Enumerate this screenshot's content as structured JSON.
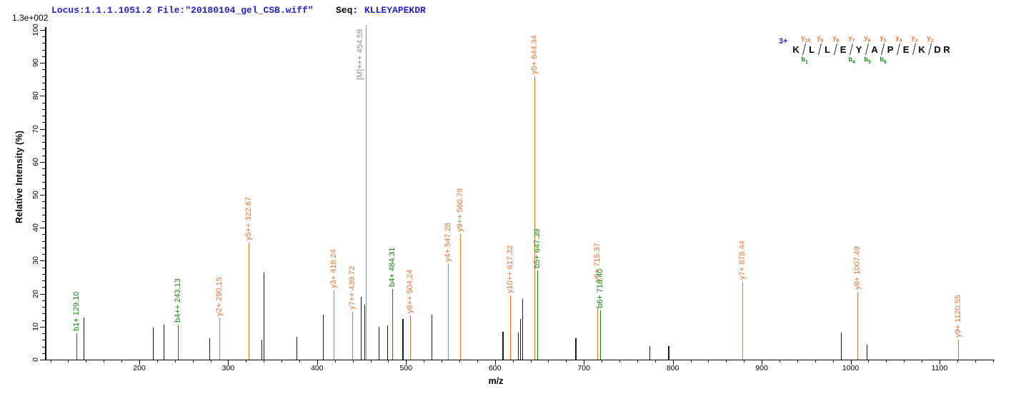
{
  "header": {
    "locus_file": "Locus:1.1.1.1051.2 File:\"20180104_gel_CSB.wiff\"",
    "seq_label": "Seq:",
    "sequence": "KLLEYAPEKDR"
  },
  "colors": {
    "y_ion": "#e2773b",
    "b_ion": "#118611",
    "header_blue": "#2222c2",
    "precursor_gray": "#8a8a8a",
    "peak_black": "#1a1a1a",
    "axis_black": "#000000"
  },
  "chart_data": {
    "type": "bar",
    "subtype": "ms2_stick_spectrum",
    "title": "Locus:1.1.1.1051.2 File:\"20180104_gel_CSB.wiff\"",
    "xlabel": "m/z",
    "ylabel": "Relative  Intensity (%)",
    "y_top_label": "1.3e+002",
    "xlim": [
      94,
      1160
    ],
    "ylim": [
      0,
      100
    ],
    "x_major_ticks": [
      200,
      300,
      400,
      500,
      600,
      700,
      800,
      900,
      1000,
      1100
    ],
    "x_minor_step": 20,
    "y_major_ticks": [
      0,
      10,
      20,
      30,
      40,
      50,
      60,
      70,
      80,
      90,
      100
    ],
    "y_minor_step": 2,
    "grid": false,
    "legend": "none",
    "precursor": {
      "label": "[M]+++ 454.59",
      "mz": 454.59,
      "charge": "3+"
    },
    "annotated_peaks": [
      {
        "ion": "b1+",
        "mz": 129.1,
        "mz_label": "129.10",
        "intensity": 8,
        "series": "b"
      },
      {
        "ion": "b4++",
        "mz": 243.13,
        "mz_label": "243.13",
        "intensity": 10.5,
        "series": "b"
      },
      {
        "ion": "y2+",
        "mz": 290.15,
        "mz_label": "290.15",
        "intensity": 12.5,
        "series": "y"
      },
      {
        "ion": "y5++",
        "mz": 322.67,
        "mz_label": "322.67",
        "intensity": 35.5,
        "series": "y"
      },
      {
        "ion": "y3+",
        "mz": 418.24,
        "mz_label": "418.24",
        "intensity": 21,
        "series": "y"
      },
      {
        "ion": "y7++",
        "mz": 439.72,
        "mz_label": "439.72",
        "intensity": 14.5,
        "series": "y"
      },
      {
        "ion": "b4+",
        "mz": 484.31,
        "mz_label": "484.31",
        "intensity": 21.5,
        "series": "b"
      },
      {
        "ion": "y8++",
        "mz": 504.24,
        "mz_label": "504.24",
        "intensity": 13.5,
        "series": "y"
      },
      {
        "ion": "y4+",
        "mz": 547.28,
        "mz_label": "547.28",
        "intensity": 29,
        "series": "y"
      },
      {
        "ion": "y9++",
        "mz": 560.79,
        "mz_label": "560.79",
        "intensity": 38,
        "series": "y"
      },
      {
        "ion": "y10++",
        "mz": 617.32,
        "mz_label": "617.32",
        "intensity": 19.5,
        "series": "y"
      },
      {
        "ion": "y5+",
        "mz": 644.34,
        "mz_label": "644.34",
        "intensity": 86,
        "series": "y"
      },
      {
        "ion": "b5+",
        "mz": 647.39,
        "mz_label": "647.39",
        "intensity": 27,
        "series": "b"
      },
      {
        "ion": "y6+",
        "mz": 715.37,
        "mz_label": "715.37",
        "intensity": 15.5,
        "series": "y",
        "label_dy": -34
      },
      {
        "ion": "b6+",
        "mz": 718.4,
        "mz_label": "718.40",
        "intensity": 15,
        "series": "b"
      },
      {
        "ion": "y7+",
        "mz": 878.44,
        "mz_label": "878.44",
        "intensity": 23.5,
        "series": "y"
      },
      {
        "ion": "y8+",
        "mz": 1007.49,
        "mz_label": "1007.49",
        "intensity": 20.5,
        "series": "y"
      },
      {
        "ion": "y9+",
        "mz": 1120.55,
        "mz_label": "1120.55",
        "intensity": 6,
        "series": "y"
      }
    ],
    "peaks_unlabeled": [
      {
        "mz": 137.5,
        "intensity": 12.8
      },
      {
        "mz": 215.5,
        "intensity": 9.7
      },
      {
        "mz": 227.5,
        "intensity": 10.5
      },
      {
        "mz": 279.0,
        "intensity": 6.5
      },
      {
        "mz": 337.5,
        "intensity": 6.1
      },
      {
        "mz": 339.5,
        "intensity": 26.5
      },
      {
        "mz": 377.0,
        "intensity": 7.0
      },
      {
        "mz": 406.5,
        "intensity": 13.7
      },
      {
        "mz": 449.0,
        "intensity": 19.0
      },
      {
        "mz": 453.3,
        "intensity": 16.6
      },
      {
        "mz": 469.0,
        "intensity": 9.9
      },
      {
        "mz": 478.5,
        "intensity": 10.4
      },
      {
        "mz": 496.0,
        "intensity": 12.4
      },
      {
        "mz": 528.5,
        "intensity": 13.7
      },
      {
        "mz": 608.5,
        "intensity": 8.4
      },
      {
        "mz": 626.0,
        "intensity": 8.2
      },
      {
        "mz": 628.5,
        "intensity": 12.4
      },
      {
        "mz": 630.5,
        "intensity": 18.5
      },
      {
        "mz": 690.5,
        "intensity": 6.6
      },
      {
        "mz": 773.5,
        "intensity": 4.1
      },
      {
        "mz": 795.0,
        "intensity": 4.1
      },
      {
        "mz": 989.0,
        "intensity": 8.2
      },
      {
        "mz": 1018.0,
        "intensity": 4.6
      }
    ],
    "sequence_ladder": {
      "charge_label": "3+",
      "residues": [
        "K",
        "L",
        "L",
        "E",
        "Y",
        "A",
        "P",
        "E",
        "K",
        "D",
        "R"
      ],
      "dividers": [
        {
          "after_index": 0,
          "y": "y10",
          "b": "b1"
        },
        {
          "after_index": 1,
          "y": "y9"
        },
        {
          "after_index": 2,
          "y": "y8"
        },
        {
          "after_index": 3,
          "y": "y7",
          "b": "b4"
        },
        {
          "after_index": 4,
          "y": "y6",
          "b": "b5"
        },
        {
          "after_index": 5,
          "y": "y5",
          "b": "b6"
        },
        {
          "after_index": 6,
          "y": "y4"
        },
        {
          "after_index": 7,
          "y": "y3"
        },
        {
          "after_index": 8,
          "y": "y2"
        }
      ]
    }
  }
}
